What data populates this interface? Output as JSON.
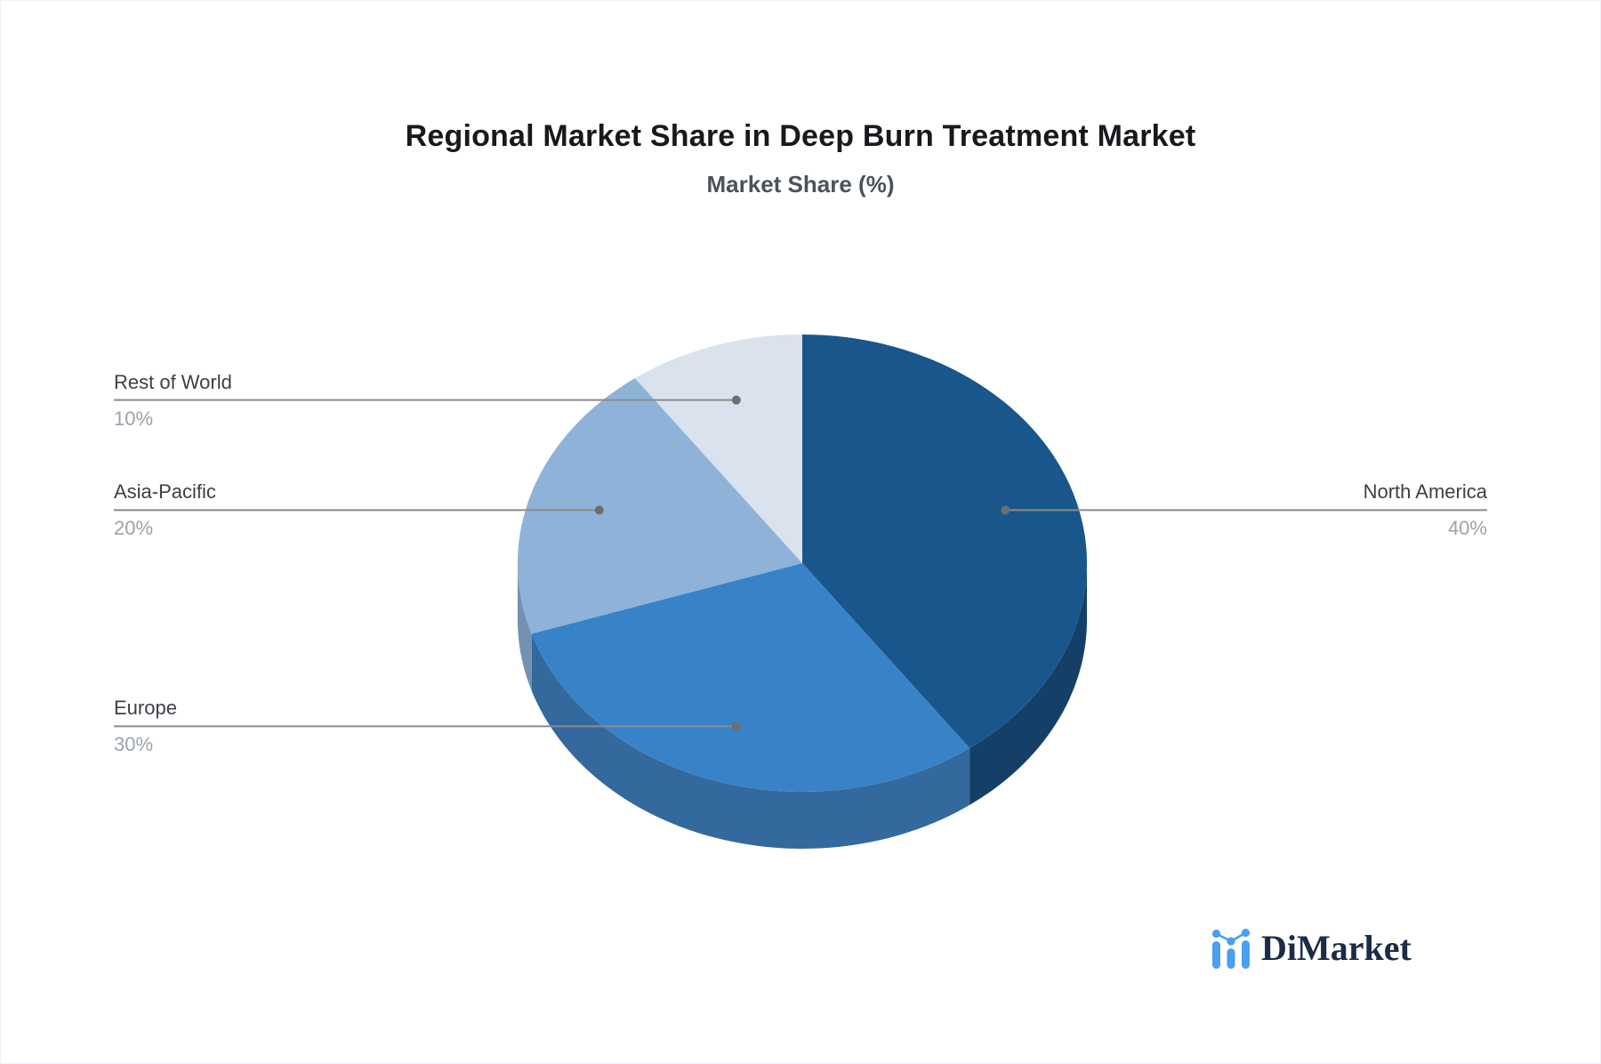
{
  "header": {
    "title": "Regional Market Share in Deep Burn Treatment Market",
    "subtitle": "Market Share (%)"
  },
  "chart_data": {
    "type": "pie",
    "style": "3d",
    "title": "Regional Market Share in Deep Burn Treatment Market",
    "subtitle": "Market Share (%)",
    "unit": "%",
    "start_angle": "top",
    "direction": "clockwise",
    "legend": "none",
    "categories": [
      "North America",
      "Europe",
      "Asia-Pacific",
      "Rest of World"
    ],
    "values": [
      40,
      30,
      20,
      10
    ],
    "slices": [
      {
        "name": "North America",
        "value": 40,
        "pct_label": "40%",
        "color": "#19568c",
        "side_color": "#144067",
        "label_side": "right"
      },
      {
        "name": "Europe",
        "value": 30,
        "pct_label": "30%",
        "color": "#3883c7",
        "side_color": "#33699d",
        "label_side": "left"
      },
      {
        "name": "Asia-Pacific",
        "value": 20,
        "pct_label": "20%",
        "color": "#8fb2d8",
        "side_color": "#7391b2",
        "label_side": "left"
      },
      {
        "name": "Rest of World",
        "value": 10,
        "pct_label": "10%",
        "color": "#dae2ee",
        "side_color": "#b9c5d8",
        "label_side": "left"
      }
    ],
    "leader_line_color": "#8b8b8b",
    "leader_dot_color": "#6e6e6e",
    "label_text_color": "#3b4147",
    "pct_text_color": "#9aa2ac"
  },
  "branding": {
    "logo_text": "DiMarket",
    "logo_text_color": "#1c2b46",
    "logo_icon_color": "#4aa0ef"
  }
}
